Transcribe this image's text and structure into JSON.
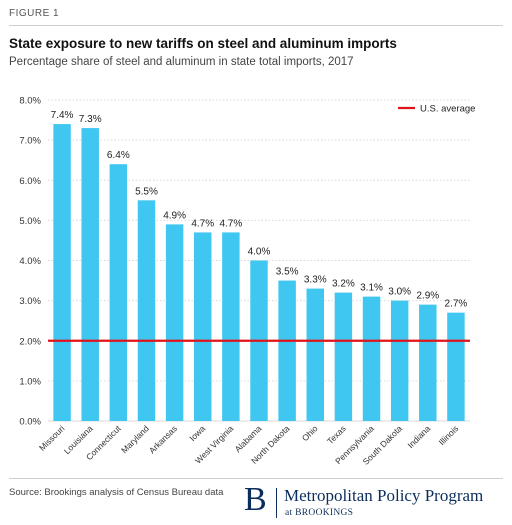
{
  "figure_label": "FIGURE 1",
  "title": "State exposure to new tariffs on steel and aluminum imports",
  "subtitle": "Percentage share of steel and aluminum in state total imports, 2017",
  "source": "Source:  Brookings analysis of Census Bureau data",
  "logo": {
    "mark": "B",
    "program": "Metropolitan Policy Program",
    "at": "at BROOKINGS"
  },
  "colors": {
    "bar": "#3fc6f1",
    "average_line": "#e0141a",
    "grid": "#d9d9d9",
    "brand": "#0b2d5b"
  },
  "chart_data": {
    "type": "bar",
    "categories": [
      "Missouri",
      "Louisiana",
      "Connecticut",
      "Maryland",
      "Arkansas",
      "Iowa",
      "West Virginia",
      "Alabama",
      "North Dakota",
      "Ohio",
      "Texas",
      "Pennsylvania",
      "South Dakota",
      "Indiana",
      "Illinois"
    ],
    "values": [
      7.4,
      7.3,
      6.4,
      5.5,
      4.9,
      4.7,
      4.7,
      4.0,
      3.5,
      3.3,
      3.2,
      3.1,
      3.0,
      2.9,
      2.7
    ],
    "data_labels": [
      "7.4%",
      "7.3%",
      "6.4%",
      "5.5%",
      "4.9%",
      "4.7%",
      "4.7%",
      "4.0%",
      "3.5%",
      "3.3%",
      "3.2%",
      "3.1%",
      "3.0%",
      "2.9%",
      "2.7%"
    ],
    "ylim": [
      0,
      8
    ],
    "yticks": [
      0,
      1,
      2,
      3,
      4,
      5,
      6,
      7,
      8
    ],
    "ytick_labels": [
      "0.0%",
      "1.0%",
      "2.0%",
      "3.0%",
      "4.0%",
      "5.0%",
      "6.0%",
      "7.0%",
      "8.0%"
    ],
    "reference_line": {
      "name": "U.S. average",
      "value": 2.0
    },
    "legend": {
      "placement": "top-right",
      "entries": [
        "U.S. average"
      ]
    },
    "grid": true,
    "xlabel": "",
    "ylabel": ""
  }
}
